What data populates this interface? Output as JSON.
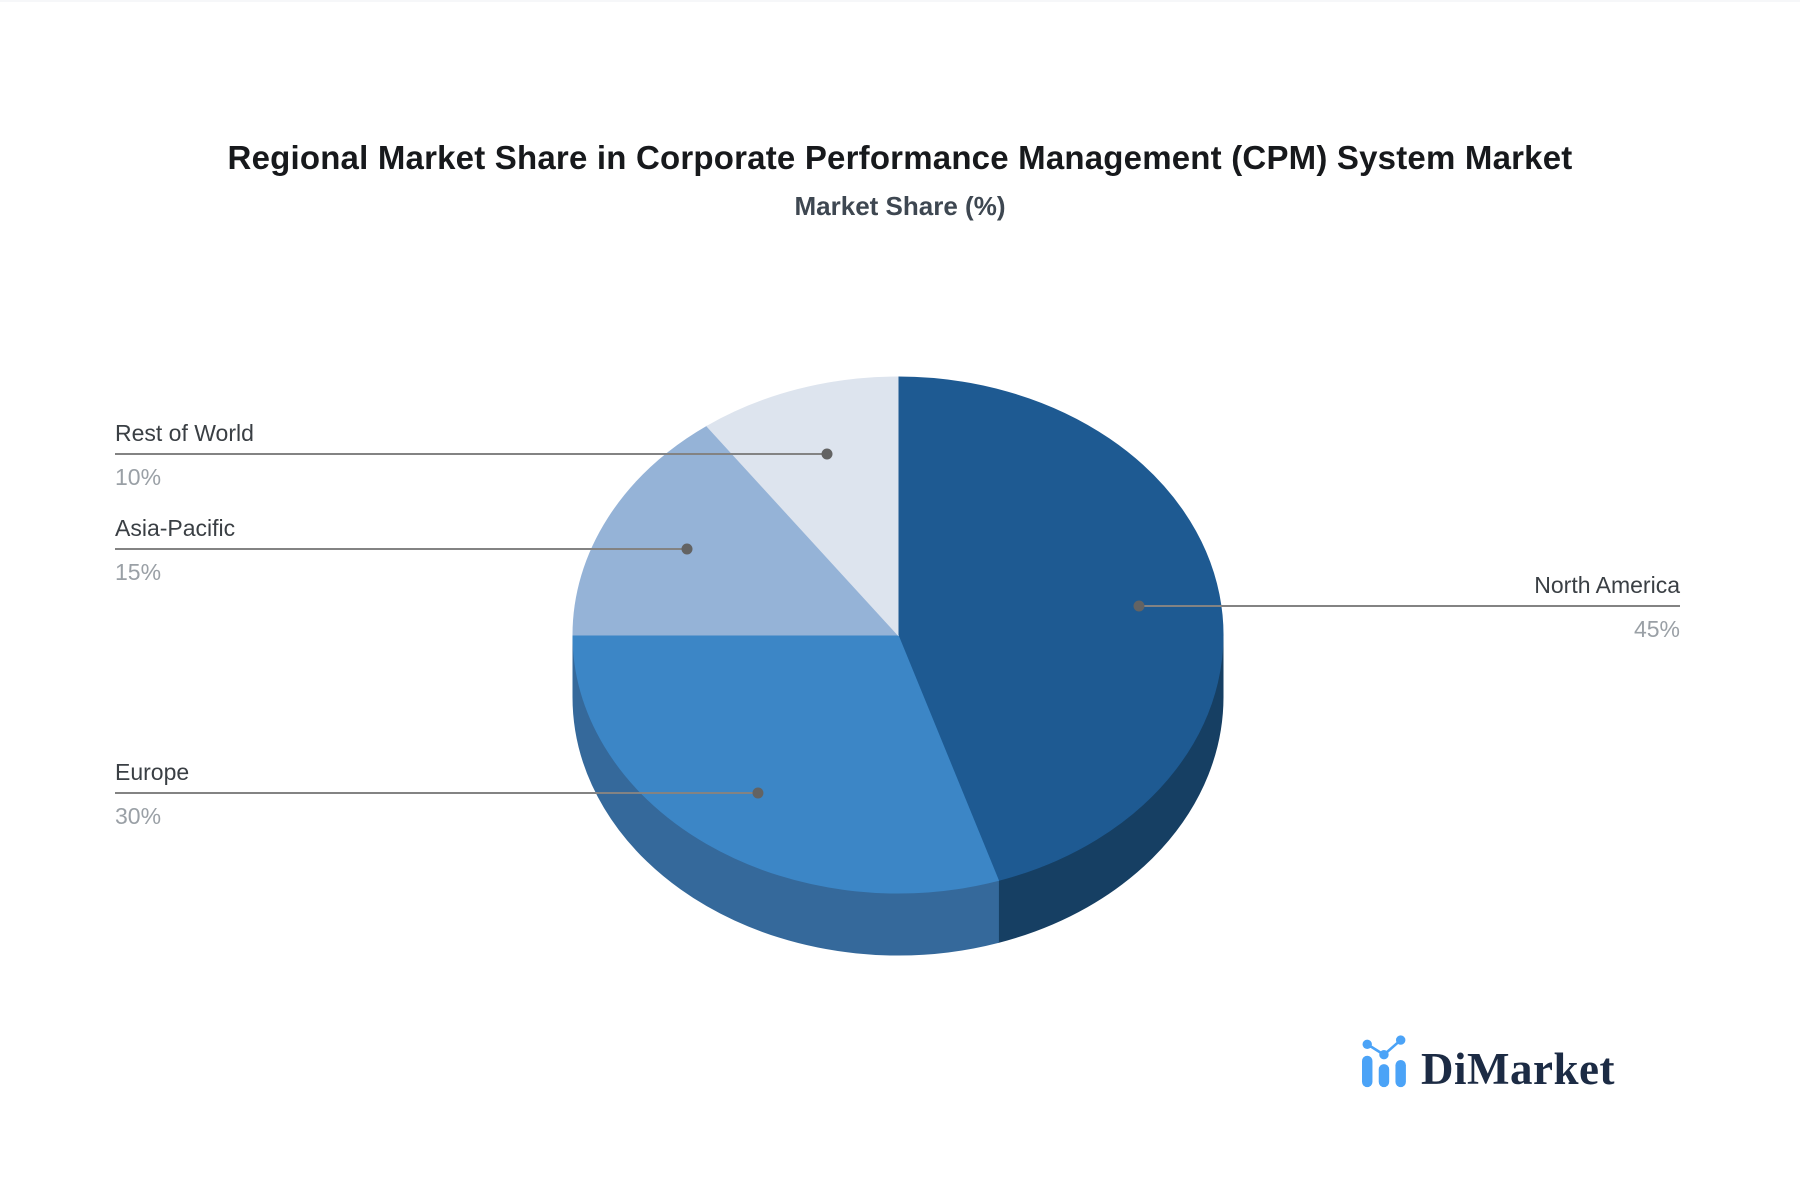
{
  "chart_data": {
    "type": "pie",
    "title": "Regional Market Share in Corporate Performance Management (CPM) System Market",
    "subtitle": "Market Share (%)",
    "unit": "%",
    "start_angle_deg": 0,
    "direction": "clockwise",
    "effect_3d": true,
    "leader_lines": true,
    "legend_position": "none",
    "slices": [
      {
        "label": "North America",
        "value": 45,
        "display": "45%",
        "color": "#1e5a92",
        "shade": "#163f63",
        "label_side": "right"
      },
      {
        "label": "Europe",
        "value": 30,
        "display": "30%",
        "color": "#3c86c6",
        "shade": "#35699b",
        "label_side": "left"
      },
      {
        "label": "Asia-Pacific",
        "value": 15,
        "display": "15%",
        "color": "#95b3d7",
        "shade": "#7e9cc0",
        "label_side": "left"
      },
      {
        "label": "Rest of World",
        "value": 10,
        "display": "10%",
        "color": "#dde4ee",
        "shade": "#b9c4d4",
        "label_side": "left"
      }
    ]
  },
  "branding": {
    "logo_text": "DiMarket",
    "logo_color": "#1c2b44",
    "logo_icon_color": "#4ba3f7"
  },
  "styles": {
    "leader_line_color": "#838383",
    "leader_dot_color": "#636363",
    "label_color": "#3a3f44",
    "percent_color": "#9aa0a6"
  }
}
